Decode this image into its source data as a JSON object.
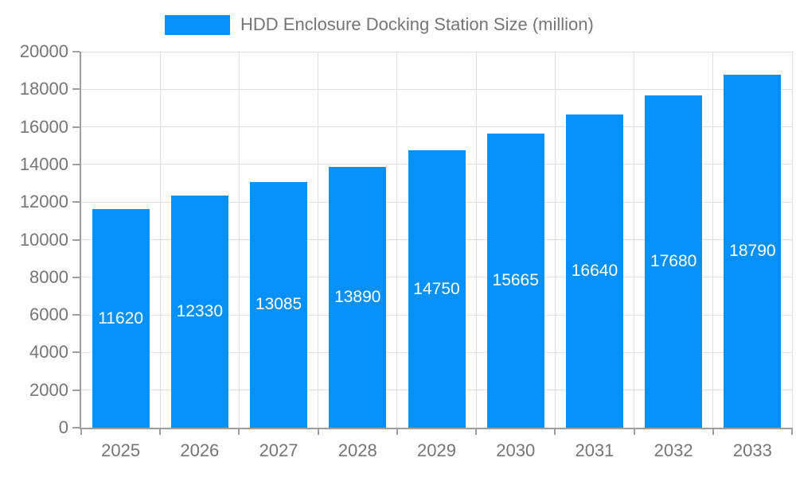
{
  "chart_data": {
    "type": "bar",
    "title": "HDD Enclosure Docking Station Size (million)",
    "categories": [
      "2025",
      "2026",
      "2027",
      "2028",
      "2029",
      "2030",
      "2031",
      "2032",
      "2033"
    ],
    "values": [
      11620,
      12330,
      13085,
      13890,
      14750,
      15665,
      16640,
      17680,
      18790
    ],
    "xlabel": "",
    "ylabel": "",
    "ylim": [
      0,
      20000
    ],
    "ytick_step": 2000,
    "ytick_labels": [
      "0",
      "2000",
      "4000",
      "6000",
      "8000",
      "10000",
      "12000",
      "14000",
      "16000",
      "18000",
      "20000"
    ],
    "grid": true,
    "legend_position": "top",
    "value_labels": "inside-middle",
    "colors": {
      "bar": "#0690FA",
      "value_label": "#FFFFFF",
      "axis": "#9E9E9E",
      "grid": "#E0E0E0",
      "text": "#757575"
    }
  }
}
